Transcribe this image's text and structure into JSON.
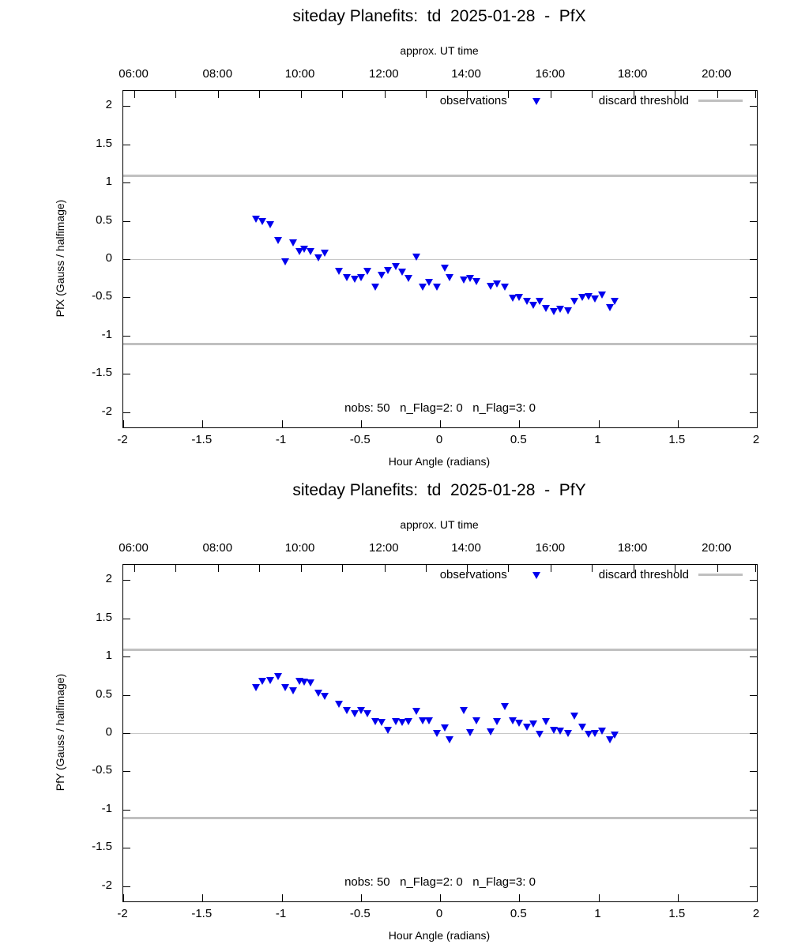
{
  "chart_data": [
    {
      "type": "scatter",
      "title": "siteday Planefits:  td  2025-01-28  -  PfX",
      "top_axis_label": "approx. UT time",
      "xlabel": "Hour Angle (radians)",
      "ylabel": "PfX (Gauss / halfimage)",
      "stats_text": "nobs: 50   n_Flag=2: 0   n_Flag=3: 0",
      "legend": [
        {
          "label": "observations",
          "type": "marker"
        },
        {
          "label": "discard threshold",
          "type": "line"
        }
      ],
      "marker_color": "#0000ee",
      "threshold_color": "#c0c0c0",
      "zero_line_color": "#c8c8c8",
      "xlim": [
        -2,
        2
      ],
      "ylim": [
        -2.2,
        2.2
      ],
      "grid": false,
      "legend_position": "top-right-inside",
      "discard_threshold": [
        1.1,
        -1.1
      ],
      "zero_line": 0,
      "x_ticks": [
        {
          "label": "-2",
          "value": -2
        },
        {
          "label": "-1.5",
          "value": -1.5
        },
        {
          "label": "-1",
          "value": -1
        },
        {
          "label": "-0.5",
          "value": -0.5
        },
        {
          "label": "0",
          "value": 0
        },
        {
          "label": "0.5",
          "value": 0.5
        },
        {
          "label": "1",
          "value": 1
        },
        {
          "label": "1.5",
          "value": 1.5
        },
        {
          "label": "2",
          "value": 2
        }
      ],
      "y_ticks": [
        {
          "label": "2",
          "value": 2
        },
        {
          "label": "1.5",
          "value": 1.5
        },
        {
          "label": "1",
          "value": 1
        },
        {
          "label": "0.5",
          "value": 0.5
        },
        {
          "label": "0",
          "value": 0
        },
        {
          "label": "-0.5",
          "value": -0.5
        },
        {
          "label": "-1",
          "value": -1
        },
        {
          "label": "-1.5",
          "value": -1.5
        },
        {
          "label": "-2",
          "value": -2
        }
      ],
      "ut_ticks": [
        {
          "label": "06:00",
          "value": -1.93
        },
        {
          "label": "",
          "value": -1.67
        },
        {
          "label": "08:00",
          "value": -1.4
        },
        {
          "label": "",
          "value": -1.14
        },
        {
          "label": "10:00",
          "value": -0.88
        },
        {
          "label": "",
          "value": -0.62
        },
        {
          "label": "12:00",
          "value": -0.35
        },
        {
          "label": "",
          "value": -0.09
        },
        {
          "label": "14:00",
          "value": 0.17
        },
        {
          "label": "",
          "value": 0.43
        },
        {
          "label": "16:00",
          "value": 0.7
        },
        {
          "label": "",
          "value": 0.96
        },
        {
          "label": "18:00",
          "value": 1.22
        },
        {
          "label": "",
          "value": 1.48
        },
        {
          "label": "20:00",
          "value": 1.75
        },
        {
          "label": "",
          "value": 1.99
        }
      ],
      "series": [
        {
          "name": "observations",
          "marker": "filled-triangle-down",
          "x": [
            -1.16,
            -1.12,
            -1.07,
            -1.02,
            -0.98,
            -0.93,
            -0.89,
            -0.86,
            -0.82,
            -0.77,
            -0.73,
            -0.64,
            -0.59,
            -0.54,
            -0.5,
            -0.46,
            -0.41,
            -0.37,
            -0.33,
            -0.28,
            -0.24,
            -0.2,
            -0.15,
            -0.11,
            -0.07,
            -0.02,
            0.03,
            0.06,
            0.15,
            0.19,
            0.23,
            0.32,
            0.36,
            0.41,
            0.46,
            0.5,
            0.55,
            0.59,
            0.63,
            0.67,
            0.72,
            0.76,
            0.81,
            0.85,
            0.9,
            0.94,
            0.98,
            1.02,
            1.07,
            1.1
          ],
          "y": [
            0.53,
            0.5,
            0.45,
            0.25,
            -0.03,
            0.22,
            0.1,
            0.13,
            0.1,
            0.02,
            0.08,
            -0.16,
            -0.24,
            -0.26,
            -0.24,
            -0.16,
            -0.36,
            -0.21,
            -0.14,
            -0.09,
            -0.17,
            -0.25,
            0.03,
            -0.36,
            -0.3,
            -0.36,
            -0.11,
            -0.24,
            -0.27,
            -0.25,
            -0.29,
            -0.35,
            -0.32,
            -0.36,
            -0.51,
            -0.5,
            -0.55,
            -0.6,
            -0.55,
            -0.64,
            -0.68,
            -0.65,
            -0.67,
            -0.55,
            -0.5,
            -0.49,
            -0.52,
            -0.46,
            -0.63,
            -0.55
          ]
        }
      ]
    },
    {
      "type": "scatter",
      "title": "siteday Planefits:  td  2025-01-28  -  PfY",
      "top_axis_label": "approx. UT time",
      "xlabel": "Hour Angle (radians)",
      "ylabel": "PfY (Gauss / halfimage)",
      "stats_text": "nobs: 50   n_Flag=2: 0   n_Flag=3: 0",
      "legend": [
        {
          "label": "observations",
          "type": "marker"
        },
        {
          "label": "discard threshold",
          "type": "line"
        }
      ],
      "marker_color": "#0000ee",
      "threshold_color": "#c0c0c0",
      "zero_line_color": "#c8c8c8",
      "xlim": [
        -2,
        2
      ],
      "ylim": [
        -2.2,
        2.2
      ],
      "grid": false,
      "legend_position": "top-right-inside",
      "discard_threshold": [
        1.1,
        -1.1
      ],
      "zero_line": 0,
      "x_ticks": [
        {
          "label": "-2",
          "value": -2
        },
        {
          "label": "-1.5",
          "value": -1.5
        },
        {
          "label": "-1",
          "value": -1
        },
        {
          "label": "-0.5",
          "value": -0.5
        },
        {
          "label": "0",
          "value": 0
        },
        {
          "label": "0.5",
          "value": 0.5
        },
        {
          "label": "1",
          "value": 1
        },
        {
          "label": "1.5",
          "value": 1.5
        },
        {
          "label": "2",
          "value": 2
        }
      ],
      "y_ticks": [
        {
          "label": "2",
          "value": 2
        },
        {
          "label": "1.5",
          "value": 1.5
        },
        {
          "label": "1",
          "value": 1
        },
        {
          "label": "0.5",
          "value": 0.5
        },
        {
          "label": "0",
          "value": 0
        },
        {
          "label": "-0.5",
          "value": -0.5
        },
        {
          "label": "-1",
          "value": -1
        },
        {
          "label": "-1.5",
          "value": -1.5
        },
        {
          "label": "-2",
          "value": -2
        }
      ],
      "ut_ticks": [
        {
          "label": "06:00",
          "value": -1.93
        },
        {
          "label": "",
          "value": -1.67
        },
        {
          "label": "08:00",
          "value": -1.4
        },
        {
          "label": "",
          "value": -1.14
        },
        {
          "label": "10:00",
          "value": -0.88
        },
        {
          "label": "",
          "value": -0.62
        },
        {
          "label": "12:00",
          "value": -0.35
        },
        {
          "label": "",
          "value": -0.09
        },
        {
          "label": "14:00",
          "value": 0.17
        },
        {
          "label": "",
          "value": 0.43
        },
        {
          "label": "16:00",
          "value": 0.7
        },
        {
          "label": "",
          "value": 0.96
        },
        {
          "label": "18:00",
          "value": 1.22
        },
        {
          "label": "",
          "value": 1.48
        },
        {
          "label": "20:00",
          "value": 1.75
        },
        {
          "label": "",
          "value": 1.99
        }
      ],
      "series": [
        {
          "name": "observations",
          "marker": "filled-triangle-down",
          "x": [
            -1.16,
            -1.12,
            -1.07,
            -1.02,
            -0.98,
            -0.93,
            -0.89,
            -0.86,
            -0.82,
            -0.77,
            -0.73,
            -0.64,
            -0.59,
            -0.54,
            -0.5,
            -0.46,
            -0.41,
            -0.37,
            -0.33,
            -0.28,
            -0.24,
            -0.2,
            -0.15,
            -0.11,
            -0.07,
            -0.02,
            0.03,
            0.06,
            0.15,
            0.19,
            0.23,
            0.32,
            0.36,
            0.41,
            0.46,
            0.5,
            0.55,
            0.59,
            0.63,
            0.67,
            0.72,
            0.76,
            0.81,
            0.85,
            0.9,
            0.94,
            0.98,
            1.02,
            1.07,
            1.1
          ],
          "y": [
            0.6,
            0.68,
            0.69,
            0.74,
            0.6,
            0.56,
            0.68,
            0.67,
            0.66,
            0.53,
            0.49,
            0.38,
            0.3,
            0.26,
            0.3,
            0.26,
            0.15,
            0.14,
            0.04,
            0.16,
            0.14,
            0.16,
            0.29,
            0.17,
            0.17,
            0.0,
            0.07,
            -0.08,
            0.3,
            0.01,
            0.17,
            0.02,
            0.16,
            0.35,
            0.17,
            0.13,
            0.08,
            0.12,
            -0.01,
            0.16,
            0.04,
            0.03,
            0.0,
            0.23,
            0.08,
            -0.01,
            0.0,
            0.03,
            -0.08,
            -0.02
          ]
        }
      ]
    }
  ]
}
